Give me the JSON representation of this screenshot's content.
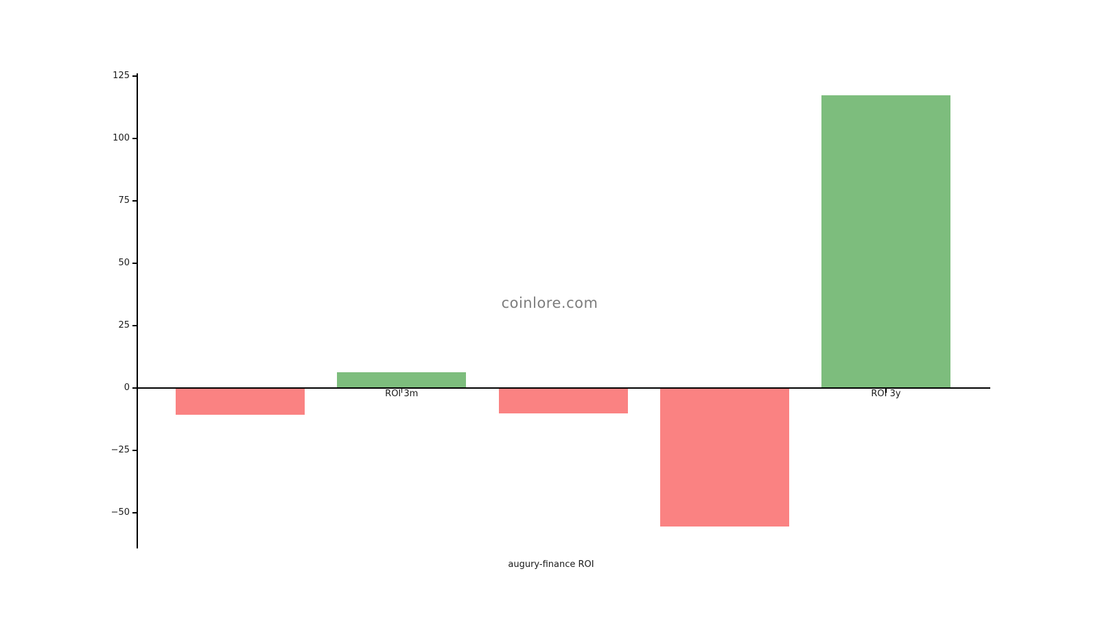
{
  "page": {
    "background": "#ffffff"
  },
  "watermark": {
    "text": "coinlore.com",
    "color": "#7d7d7d"
  },
  "chart_data": {
    "type": "bar",
    "title": "augury-finance ROI",
    "categories": [
      "",
      "ROI 3m",
      "",
      "",
      "ROI 3y"
    ],
    "values": [
      -10.6,
      6.3,
      -10.2,
      -55.5,
      117.3
    ],
    "positive_color": "#7dbd7d",
    "negative_color": "#fa8282",
    "yticks": [
      125,
      100,
      75,
      50,
      25,
      0,
      -25,
      -50
    ],
    "ylim": [
      -64,
      126
    ],
    "xlabel": "augury-finance ROI",
    "ylabel": "",
    "grid": false,
    "legend": false,
    "axis_color": "#000000",
    "text_color": "#1a1a1a"
  }
}
